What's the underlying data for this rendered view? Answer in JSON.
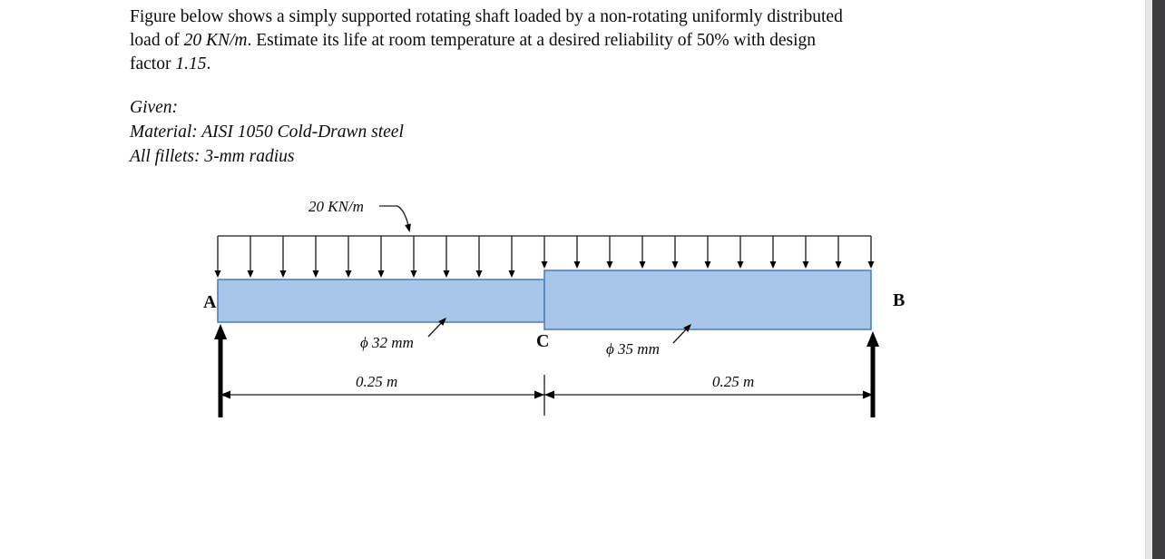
{
  "problem": {
    "line1": "Figure below shows a simply supported rotating shaft loaded by a non-rotating uniformly distributed",
    "line2a": "load of ",
    "line2b": "20 KN/m",
    "line2c": ". Estimate its life at room temperature at a desired reliability of 50% with design",
    "line3a": "factor ",
    "line3b": "1.15",
    "line3c": "."
  },
  "given": {
    "heading": "Given:",
    "material": "Material: AISI 1050 Cold-Drawn steel",
    "fillets": "All fillets: 3-mm radius"
  },
  "diagram": {
    "load_label": "20 KN/m",
    "support_left": "A",
    "support_right": "B",
    "midpoint": "C",
    "left_diameter": "ϕ 32 mm",
    "right_diameter": "ϕ 35 mm",
    "left_span": "0.25 m",
    "right_span": "0.25 m",
    "shaft_fill": "#a8c7e8",
    "shaft_stroke": "#4f81bd"
  }
}
